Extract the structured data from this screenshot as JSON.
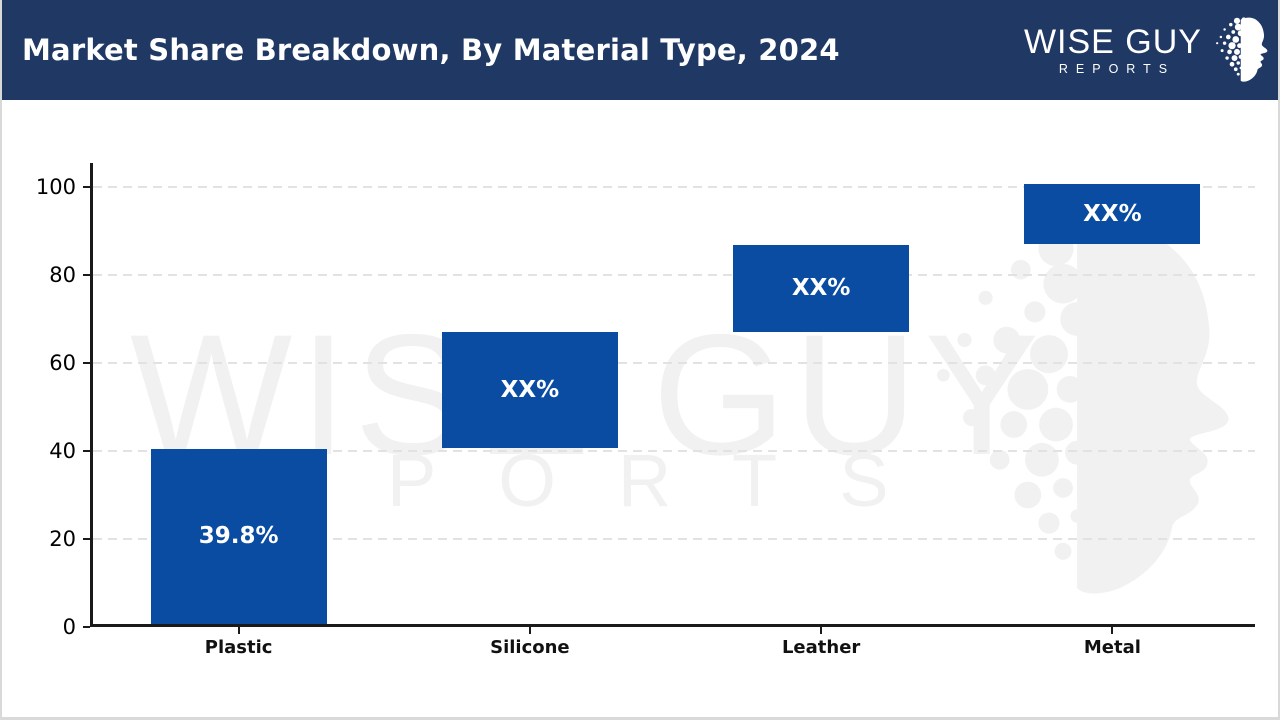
{
  "header": {
    "title": "Market Share Breakdown, By Material Type, 2024",
    "logo": {
      "wordmark": "WISE GUY",
      "subtext": "REPORTS"
    }
  },
  "watermark": {
    "line1": "WISE GUY",
    "line2": "PORTS"
  },
  "colors": {
    "header_bg": "#1f3864",
    "bar": "#0b4ca3",
    "bar_label": "#ffffff",
    "grid": "#e2e2e2",
    "axis": "#1a1a1a",
    "watermark": "#f1f1f1"
  },
  "chart_data": {
    "type": "bar",
    "variant": "waterfall",
    "title": "Market Share Breakdown, By Material Type, 2024",
    "xlabel": "",
    "ylabel": "",
    "categories": [
      "Plastic",
      "Silicone",
      "Leather",
      "Metal"
    ],
    "segments": [
      {
        "category": "Plastic",
        "start": 0,
        "end": 39.8,
        "label": "39.8%"
      },
      {
        "category": "Silicone",
        "start": 40,
        "end": 66.3,
        "label": "XX%"
      },
      {
        "category": "Leather",
        "start": 66.4,
        "end": 86.1,
        "label": "XX%"
      },
      {
        "category": "Metal",
        "start": 86.3,
        "end": 100,
        "label": "XX%"
      }
    ],
    "yticks": [
      0,
      20,
      40,
      60,
      80,
      100
    ],
    "ylim": [
      0,
      105.45
    ],
    "grid": true,
    "grid_style": "dashed",
    "legend": false
  }
}
